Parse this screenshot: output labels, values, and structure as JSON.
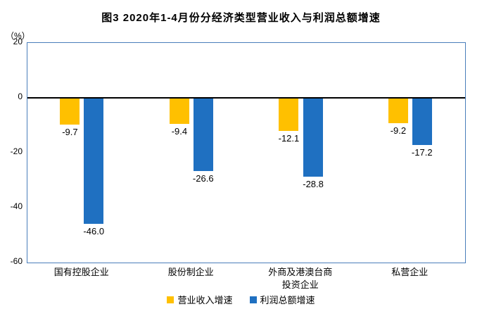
{
  "chart": {
    "title": "图3 2020年1-4月份分经济类型营业收入与利润总额增速",
    "unit_label": "（%）"
  },
  "chart_data": {
    "type": "bar",
    "title": "图3 2020年1-4月份分经济类型营业收入与利润总额增速",
    "unit": "%",
    "categories": [
      "国有控股企业",
      "股份制企业",
      "外商及港澳台商\n投资企业",
      "私营企业"
    ],
    "series": [
      {
        "name": "营业收入增速",
        "color": "#FFC000",
        "values": [
          -9.7,
          -9.4,
          -12.1,
          -9.2
        ]
      },
      {
        "name": "利润总额增速",
        "color": "#1F70C1",
        "values": [
          -46.0,
          -26.6,
          -28.8,
          -17.2
        ]
      }
    ],
    "ylim": [
      -60,
      20
    ],
    "yticks": [
      20,
      0,
      -20,
      -40,
      -60
    ],
    "grid": false,
    "legend_position": "bottom"
  }
}
